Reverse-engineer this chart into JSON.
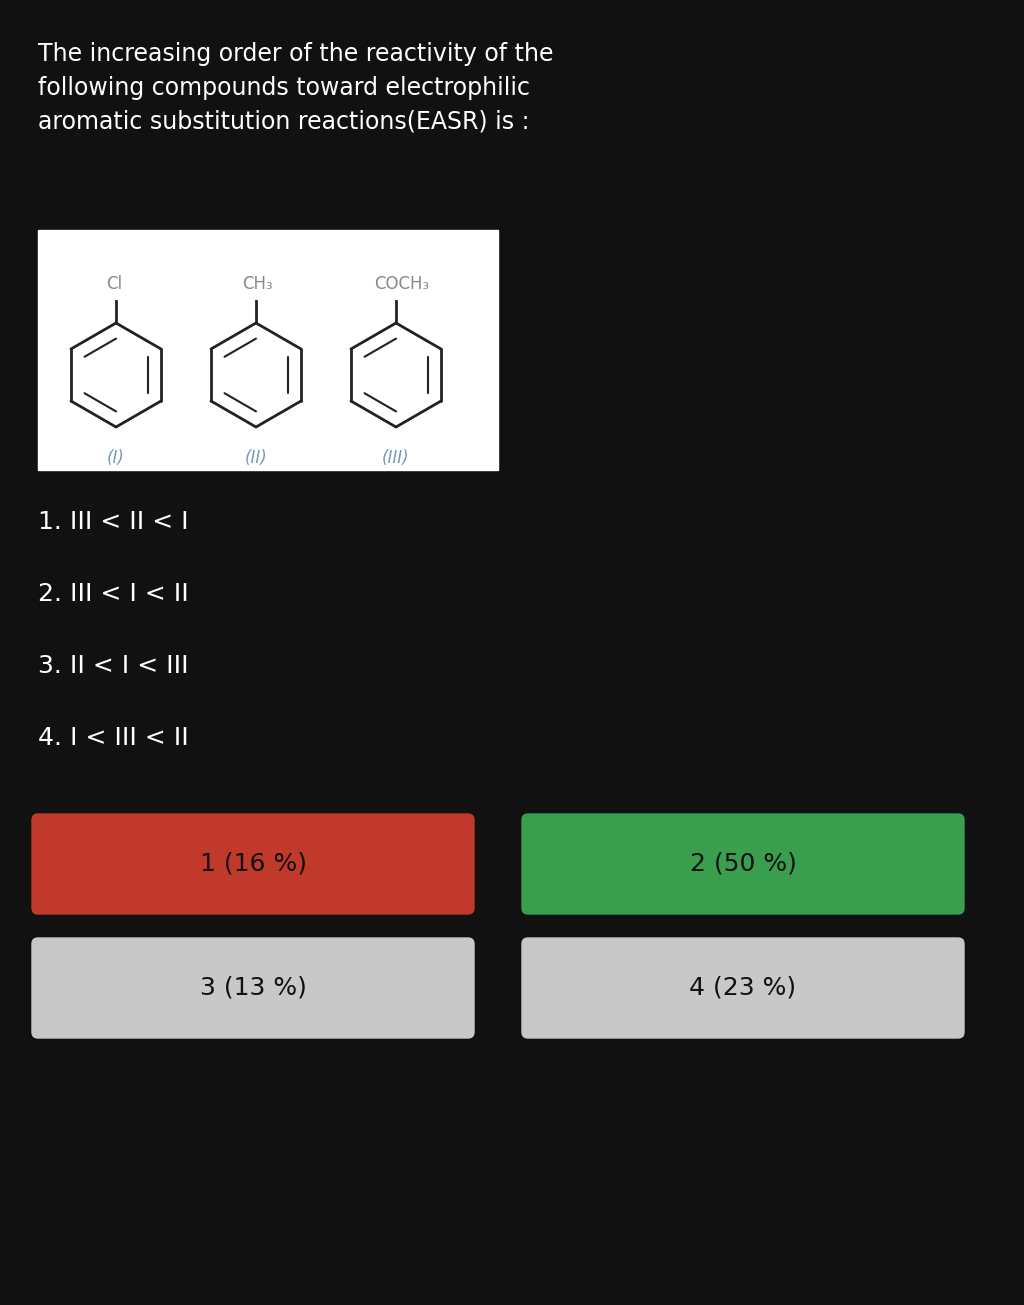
{
  "background_color": "#111111",
  "title_text": "The increasing order of the reactivity of the\nfollowing compounds toward electrophilic\naromatic substitution reactions(EASR) is :",
  "title_color": "#ffffff",
  "title_fontsize": 17,
  "options": [
    "1. III < II < I",
    "2. III < I < II",
    "3. II < I < III",
    "4. I < III < II"
  ],
  "options_color": "#ffffff",
  "options_fontsize": 18,
  "buttons": [
    {
      "label": "1 (16 %)",
      "color": "#c0392b",
      "text_color": "#111111"
    },
    {
      "label": "2 (50 %)",
      "color": "#3a9e4f",
      "text_color": "#111111"
    },
    {
      "label": "3 (13 %)",
      "color": "#c8c8c8",
      "text_color": "#111111"
    },
    {
      "label": "4 (23 %)",
      "color": "#c8c8c8",
      "text_color": "#111111"
    }
  ],
  "button_fontsize": 18,
  "chem_labels": [
    "Cl",
    "CH₃",
    "COCH₃"
  ],
  "chem_roman": [
    "(I)",
    "(II)",
    "(III)"
  ],
  "chem_label_color": "#888888",
  "chem_roman_color": "#7799bb"
}
